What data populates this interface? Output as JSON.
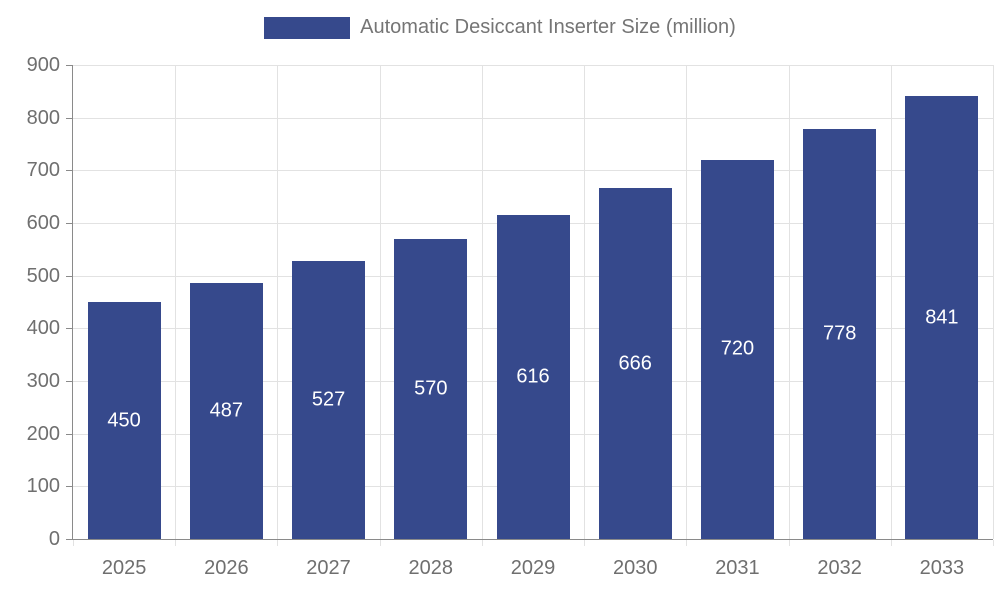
{
  "legend": {
    "label": "Automatic Desiccant Inserter Size (million)"
  },
  "colors": {
    "background": "#FFFFFF",
    "bar": "#36498C",
    "grid": "#E2E2E2",
    "axis": "#8A8A8A",
    "tick_text": "#6F6F6F",
    "legend_text": "#757575",
    "bar_label": "#FFFFFF"
  },
  "chart_data": {
    "type": "bar",
    "title": "",
    "series_name": "Automatic Desiccant Inserter Size (million)",
    "categories": [
      "2025",
      "2026",
      "2027",
      "2028",
      "2029",
      "2030",
      "2031",
      "2032",
      "2033"
    ],
    "values": [
      450,
      487,
      527,
      570,
      616,
      666,
      720,
      778,
      841
    ],
    "xlabel": "",
    "ylabel": "",
    "ylim": [
      0,
      900
    ],
    "ytick_step": 100,
    "yticks": [
      0,
      100,
      200,
      300,
      400,
      500,
      600,
      700,
      800,
      900
    ],
    "grid": true,
    "legend_position": "top-center",
    "bar_labels_inside": true
  }
}
